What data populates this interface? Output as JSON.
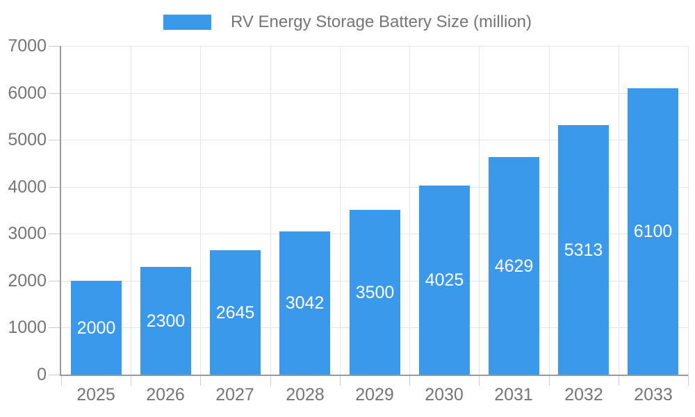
{
  "chart_data": {
    "type": "bar",
    "title": "RV Energy Storage Battery Size (million)",
    "legend_position": "top",
    "categories": [
      "2025",
      "2026",
      "2027",
      "2028",
      "2029",
      "2030",
      "2031",
      "2032",
      "2033"
    ],
    "series": [
      {
        "name": "RV Energy Storage Battery Size (million)",
        "values": [
          2000,
          2300,
          2645,
          3042,
          3500,
          4025,
          4629,
          5313,
          6100
        ]
      }
    ],
    "bar_value_labels": [
      "2000",
      "2300",
      "2645",
      "3042",
      "3500",
      "4025",
      "4629",
      "5313",
      "6100"
    ],
    "xlabel": "",
    "ylabel": "",
    "ylim": [
      0,
      7000
    ],
    "yticks": [
      0,
      1000,
      2000,
      3000,
      4000,
      5000,
      6000,
      7000
    ],
    "ytick_labels": [
      "0",
      "1000",
      "2000",
      "3000",
      "4000",
      "5000",
      "6000",
      "7000"
    ],
    "grid": true,
    "colors": {
      "bar": "#3b99ec",
      "bar_label": "#ffffff",
      "axis_text": "#757575",
      "legend_text": "#757575",
      "grid_line": "#e4e4e4",
      "tick_line": "#cccccc",
      "axis_line": "#999999",
      "background": "#ffffff"
    }
  }
}
